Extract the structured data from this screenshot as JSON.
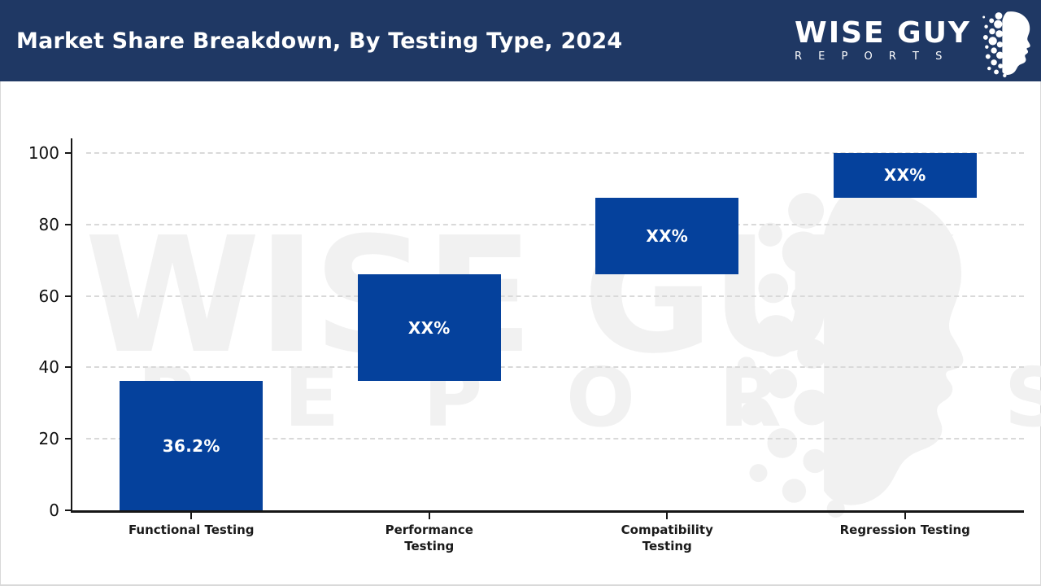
{
  "header": {
    "title": "Market Share Breakdown, By Testing Type, 2024",
    "logo": {
      "line1": "WISE GUY",
      "line2": "R E P O R T S"
    }
  },
  "watermark": {
    "line1": "WISE GUY",
    "line2": "R E P O R T S"
  },
  "colors": {
    "header_bg": "#1f3864",
    "bar": "#05419c",
    "grid": "#d9d9d9",
    "axis": "#161616",
    "title_text": "#ffffff",
    "watermark": "#f1f1f1",
    "bar_label_text": "#ffffff"
  },
  "chart_data": {
    "type": "bar",
    "subtype": "floating-segment-column",
    "title": "Market Share Breakdown, By Testing Type, 2024",
    "xlabel": "",
    "ylabel": "",
    "ylim": [
      0,
      100
    ],
    "yticks": [
      0,
      20,
      40,
      60,
      80,
      100
    ],
    "grid": "horizontal-dashed",
    "legend": "none",
    "categories": [
      "Functional Testing",
      "Performance Testing",
      "Compatibility Testing",
      "Regression Testing"
    ],
    "category_lines": [
      [
        "Functional Testing"
      ],
      [
        "Performance",
        "Testing"
      ],
      [
        "Compatibility",
        "Testing"
      ],
      [
        "Regression Testing"
      ]
    ],
    "segments": [
      {
        "category": "Functional Testing",
        "start": 0,
        "end": 36.2,
        "label": "36.2%"
      },
      {
        "category": "Performance Testing",
        "start": 36.2,
        "end": 66.0,
        "label": "XX%"
      },
      {
        "category": "Compatibility Testing",
        "start": 66.0,
        "end": 87.5,
        "label": "XX%"
      },
      {
        "category": "Regression Testing",
        "start": 87.5,
        "end": 100,
        "label": "XX%"
      }
    ]
  }
}
